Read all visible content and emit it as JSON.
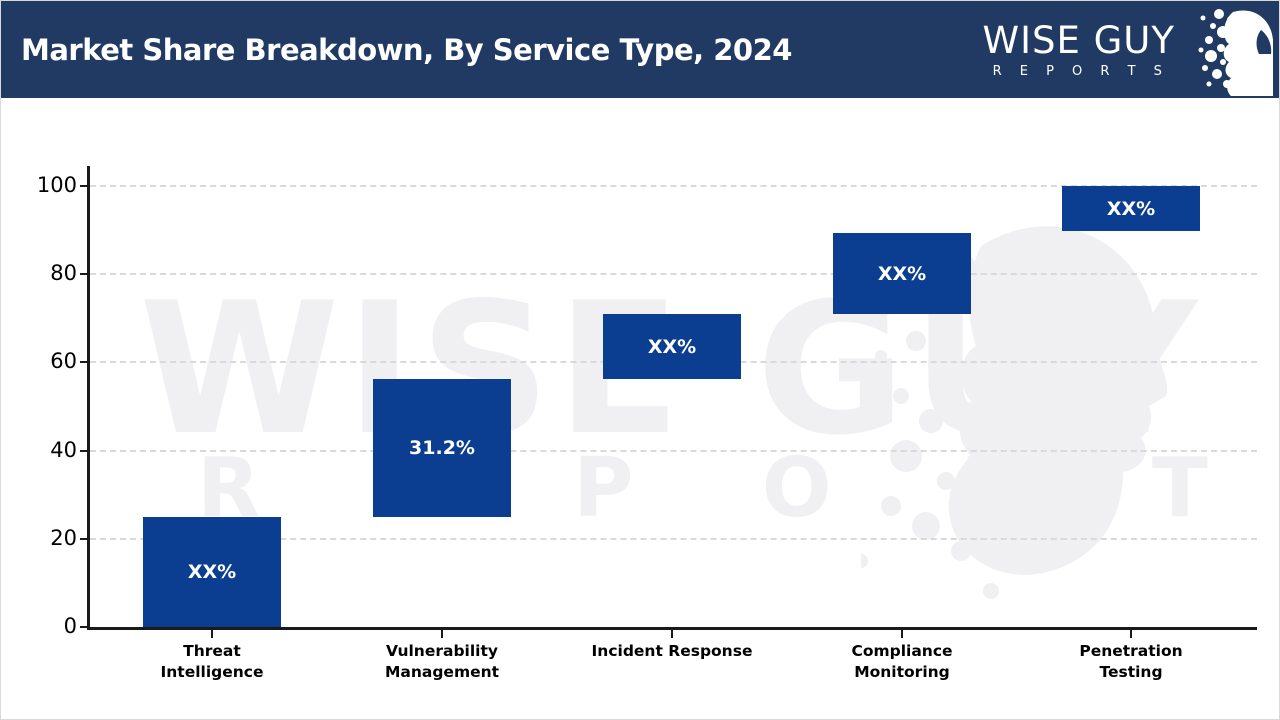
{
  "header": {
    "title": "Market Share Breakdown, By Service Type, 2024",
    "logo_line1": "WISE GUY",
    "logo_line2": "R E P O R T S"
  },
  "watermark": {
    "line1": "WISE GUY",
    "line2": "R E P O R T S"
  },
  "colors": {
    "header_bg": "#213a63",
    "bar": "#0b3d91",
    "gridline": "#d9d9d9",
    "axis": "#1a1a1a",
    "watermark": "#f0f0f2",
    "title_text": "#ffffff",
    "bar_label_text": "#ffffff"
  },
  "chart_data": {
    "type": "bar",
    "subtype": "waterfall",
    "title": "Market Share Breakdown, By Service Type, 2024",
    "categories": [
      "Threat Intelligence",
      "Vulnerability Management",
      "Incident Response",
      "Compliance Monitoring",
      "Penetration Testing"
    ],
    "category_label_lines": [
      [
        "Threat",
        "Intelligence"
      ],
      [
        "Vulnerability",
        "Management"
      ],
      [
        "Incident Response"
      ],
      [
        "Compliance",
        "Monitoring"
      ],
      [
        "Penetration",
        "Testing"
      ]
    ],
    "segments": [
      {
        "category": "Threat Intelligence",
        "start": 0,
        "end": 25,
        "label": "XX%"
      },
      {
        "category": "Vulnerability Management",
        "start": 25,
        "end": 56.2,
        "label": "31.2%"
      },
      {
        "category": "Incident Response",
        "start": 56.2,
        "end": 71,
        "label": "XX%"
      },
      {
        "category": "Compliance Monitoring",
        "start": 71,
        "end": 89.3,
        "label": "XX%"
      },
      {
        "category": "Penetration Testing",
        "start": 89.7,
        "end": 100,
        "label": "XX%"
      }
    ],
    "y_ticks": [
      0,
      20,
      40,
      60,
      80,
      100
    ],
    "ylim": [
      0,
      100
    ],
    "xlabel": "",
    "ylabel": "",
    "grid": "horizontal-dashed",
    "legend": "none"
  }
}
